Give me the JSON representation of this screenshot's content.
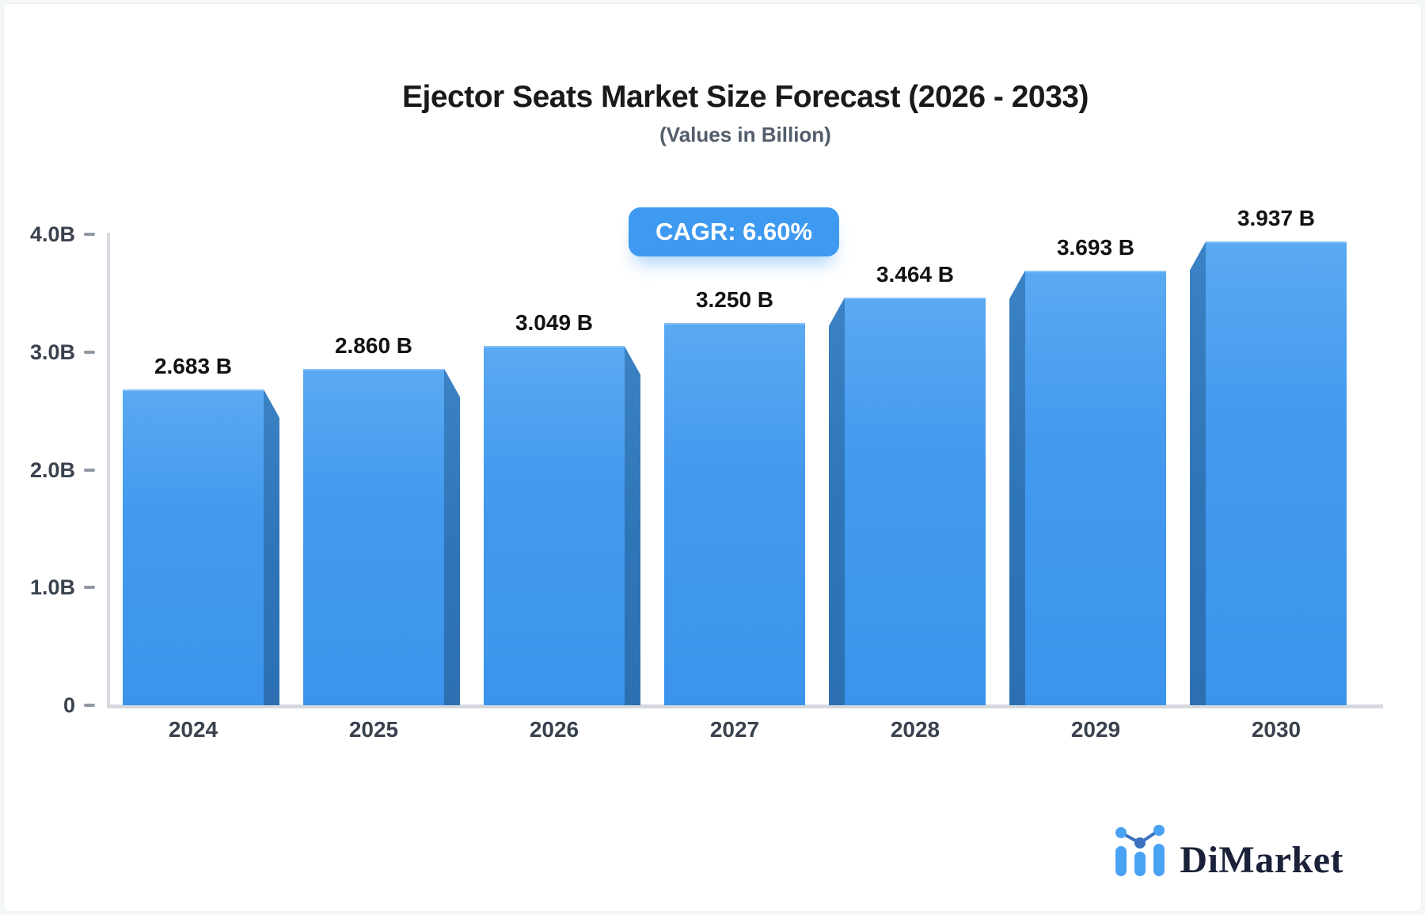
{
  "header": {
    "title": "Ejector Seats Market Size Forecast (2026 - 2033)",
    "subtitle": "(Values in Billion)",
    "cagr_badge": "CAGR: 6.60%"
  },
  "chart_data": {
    "type": "bar",
    "title": "Ejector Seats Market Size Forecast (2026 - 2033)",
    "subtitle": "(Values in Billion)",
    "annotation": "CAGR: 6.60%",
    "categories": [
      "2024",
      "2025",
      "2026",
      "2027",
      "2028",
      "2029",
      "2030"
    ],
    "values": [
      2.683,
      2.86,
      3.049,
      3.25,
      3.464,
      3.693,
      3.937
    ],
    "value_labels": [
      "2.683 B",
      "2.860 B",
      "3.049 B",
      "3.250 B",
      "3.464 B",
      "3.693 B",
      "3.937 B"
    ],
    "unit": "Billion",
    "y_ticks": [
      {
        "label": "4.0B",
        "value": 4
      },
      {
        "label": "3.0B",
        "value": 3
      },
      {
        "label": "2.0B",
        "value": 2
      },
      {
        "label": "1.0B",
        "value": 1
      },
      {
        "label": "0",
        "value": 0
      }
    ],
    "ylim": [
      0,
      4
    ],
    "grid": false,
    "legend": false,
    "bar_color": "#4399ee",
    "bar_side_color": "#2e75b8",
    "axis_color": "#d5d9de"
  },
  "footer": {
    "brand": "DiMarket",
    "logo_icon": "bar-line-chart-icon",
    "logo_blue": "#4aa2f3",
    "logo_dark_blue": "#3a72c0",
    "text_color": "#1a2138"
  },
  "colors": {
    "accent_blue": "#3e9af0",
    "background": "#f5f8f9",
    "card": "#ffffff",
    "title_text": "#1a1a1a",
    "subtitle_text": "#525c6b",
    "axis_label_text": "#39424e"
  }
}
